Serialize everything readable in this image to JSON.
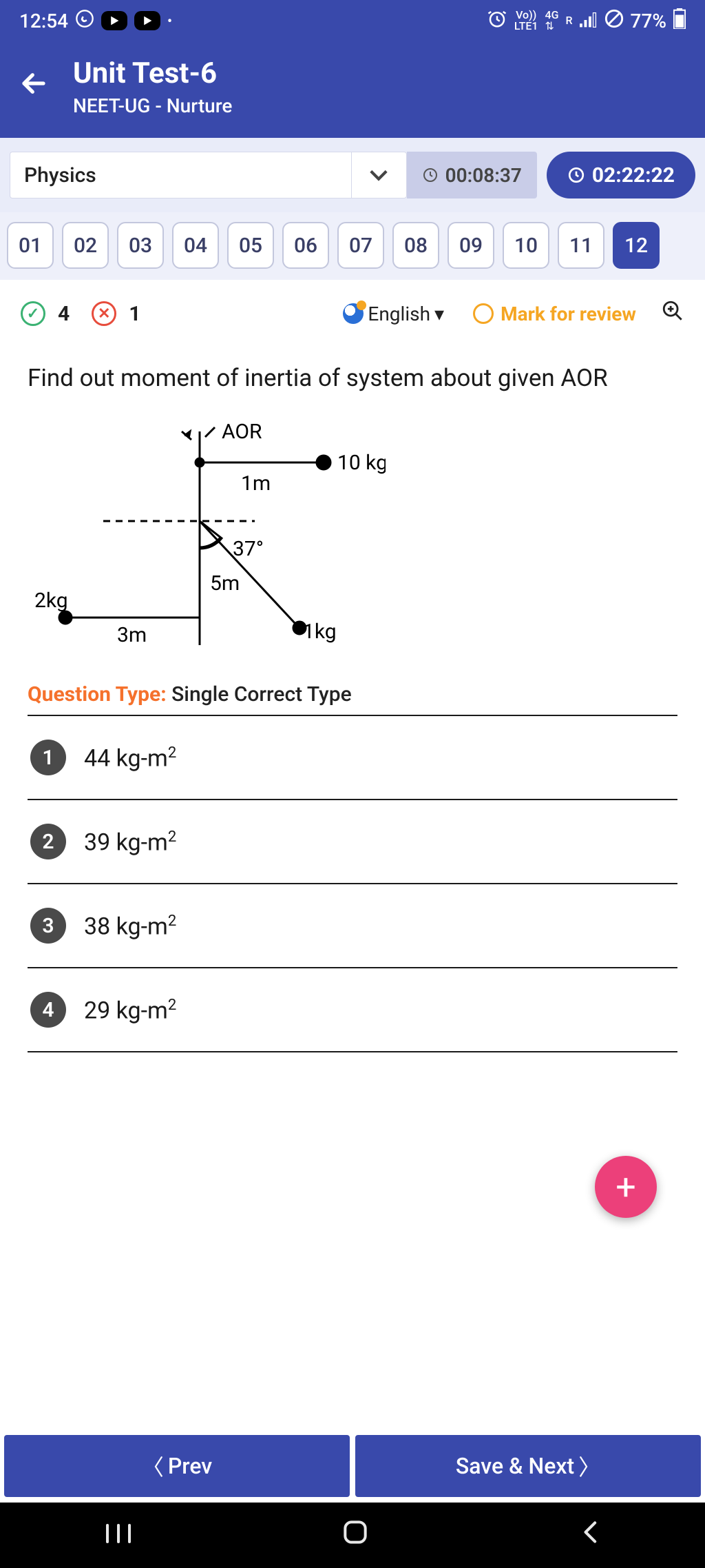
{
  "statusbar": {
    "time": "12:54",
    "battery": "77%",
    "signal_text": "4G",
    "carrier": "LTE1",
    "volte": "Vo))",
    "r": "R"
  },
  "header": {
    "title": "Unit Test-6",
    "subtitle": "NEET-UG - Nurture"
  },
  "subject": {
    "name": "Physics",
    "question_timer": "00:08:37",
    "total_timer": "02:22:22"
  },
  "qnums": [
    "01",
    "02",
    "03",
    "04",
    "05",
    "06",
    "07",
    "08",
    "09",
    "10",
    "11",
    "12"
  ],
  "active_qnum_index": 11,
  "metabar": {
    "correct": "4",
    "wrong": "1",
    "language": "English",
    "mark_label": "Mark for review"
  },
  "question": {
    "text": "Find out moment of inertia of system about given AOR",
    "type_label": "Question Type:",
    "type_value": "Single Correct Type",
    "diagram": {
      "aor_label": "AOR",
      "m1_label": "10 kg",
      "m1_dist": "1m",
      "m2_label": "2kg",
      "m2_dist": "3m",
      "m3_label": "1kg",
      "m3_dist": "5m",
      "angle": "37°"
    }
  },
  "options": [
    {
      "num": "1",
      "text": "44 kg-m",
      "sup": "2"
    },
    {
      "num": "2",
      "text": "39 kg-m",
      "sup": "2"
    },
    {
      "num": "3",
      "text": "38 kg-m",
      "sup": "2"
    },
    {
      "num": "4",
      "text": "29 kg-m",
      "sup": "2"
    }
  ],
  "bottom": {
    "prev": "Prev",
    "next": "Save & Next"
  },
  "colors": {
    "primary": "#3949ab",
    "accent": "#ec407a",
    "review": "#f5a623",
    "qtype": "#f5712c",
    "correct": "#3bb273",
    "wrong": "#e74c3c"
  }
}
